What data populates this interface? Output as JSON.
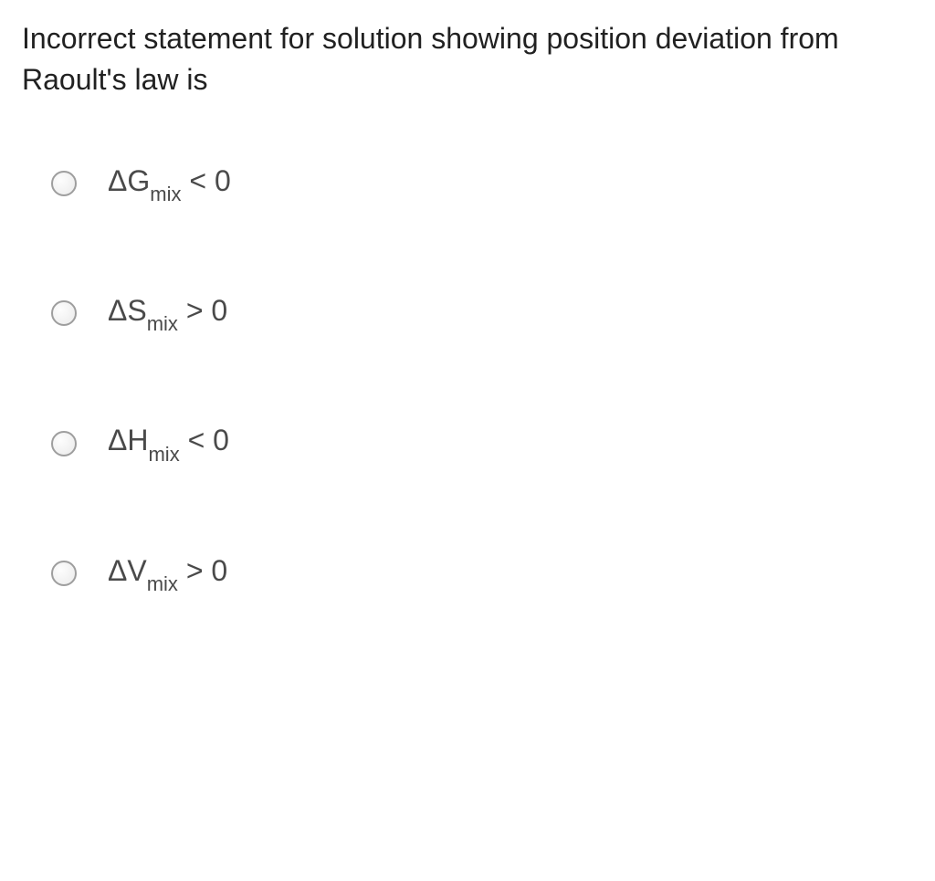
{
  "question": {
    "text": "Incorrect statement for solution showing position deviation from Raoult's law is",
    "color": "#212121",
    "fontsize": 32
  },
  "options": [
    {
      "delta": "ΔG",
      "sub": "mix",
      "rel": " < 0"
    },
    {
      "delta": "ΔS",
      "sub": "mix",
      "rel": " > 0"
    },
    {
      "delta": "ΔH",
      "sub": "mix",
      "rel": " < 0"
    },
    {
      "delta": "ΔV",
      "sub": "mix",
      "rel": " > 0"
    }
  ],
  "styles": {
    "option_color": "#4a4a4a",
    "radio_border": "#9e9e9e",
    "background": "#ffffff"
  }
}
